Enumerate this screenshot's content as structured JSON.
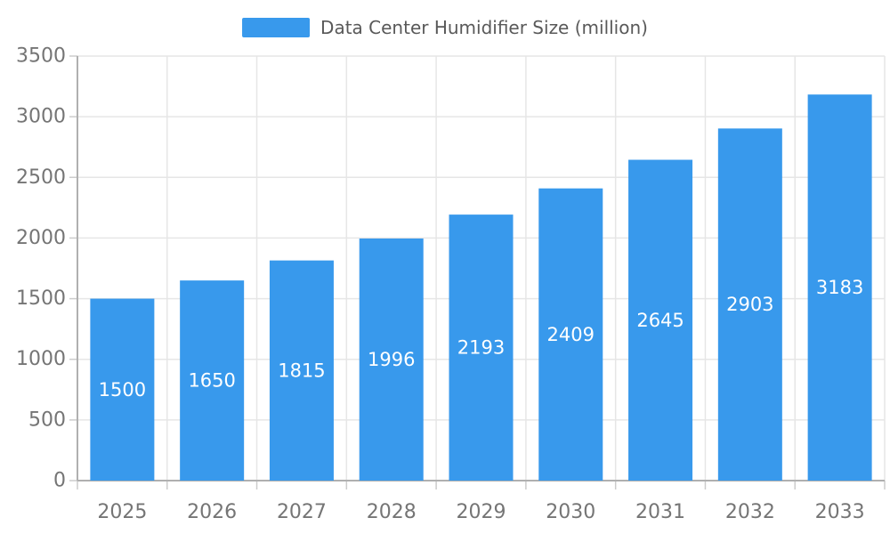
{
  "legend": {
    "label": "Data Center Humidifier Size (million)"
  },
  "colors": {
    "bar": "#3899ec",
    "grid": "#e6e6e6",
    "tick": "#cccccc",
    "axis": "#b0b0b0",
    "tick_label": "#757575",
    "legend_text": "#595959",
    "bar_label": "#ffffff",
    "background": "#ffffff"
  },
  "chart_data": {
    "type": "bar",
    "title": "",
    "categories": [
      "2025",
      "2026",
      "2027",
      "2028",
      "2029",
      "2030",
      "2031",
      "2032",
      "2033"
    ],
    "series": [
      {
        "name": "Data Center Humidifier Size (million)",
        "values": [
          1500,
          1650,
          1815,
          1996,
          2193,
          2409,
          2645,
          2903,
          3183
        ]
      }
    ],
    "xlabel": "",
    "ylabel": "",
    "ylim": [
      0,
      3500
    ],
    "ytick_step": 500,
    "yticks": [
      0,
      500,
      1000,
      1500,
      2000,
      2500,
      3000,
      3500
    ],
    "grid": true,
    "legend_position": "top",
    "value_labels": "center"
  }
}
